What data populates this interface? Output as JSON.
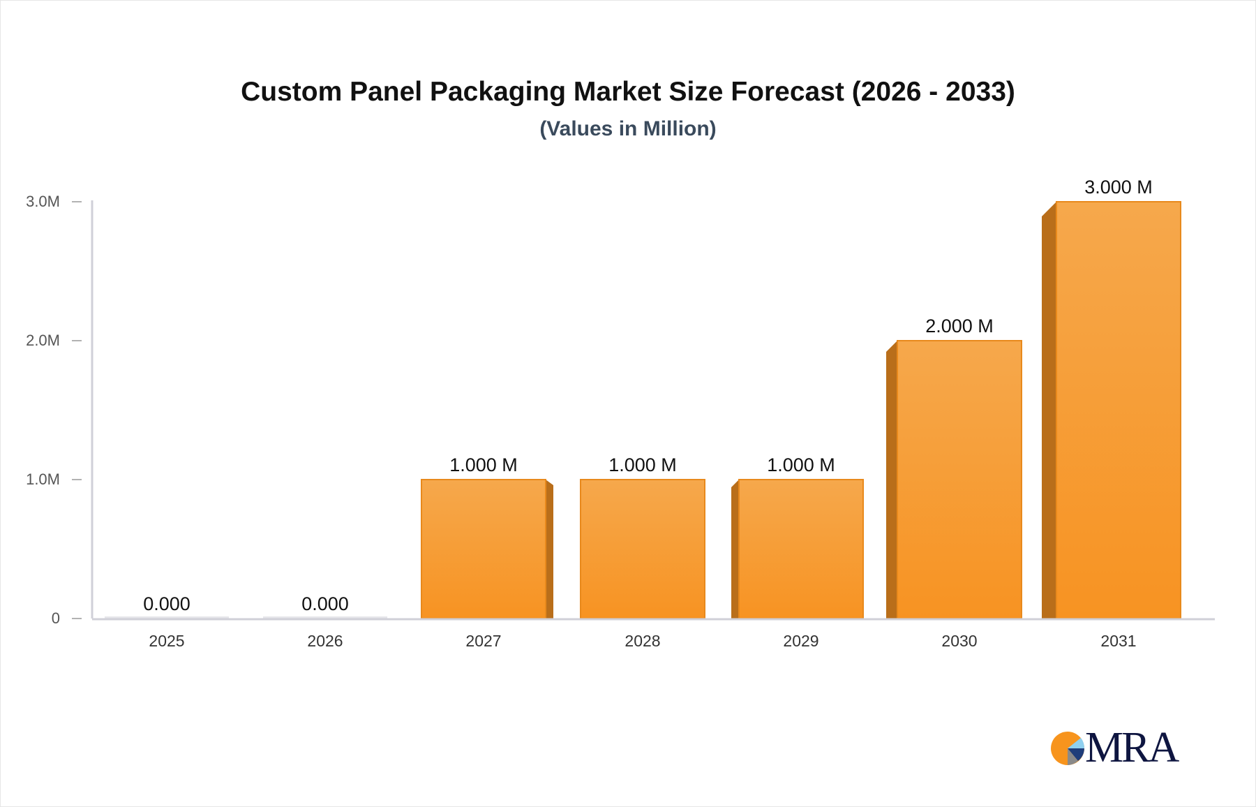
{
  "chart_data": {
    "type": "bar",
    "title": "Custom Panel Packaging Market Size Forecast (2026 - 2033)",
    "subtitle": "(Values in Million)",
    "categories": [
      "2025",
      "2026",
      "2027",
      "2028",
      "2029",
      "2030",
      "2031"
    ],
    "values": [
      0,
      0,
      1,
      1,
      1,
      2,
      3
    ],
    "data_labels": [
      "0.000",
      "0.000",
      "1.000 M",
      "1.000 M",
      "1.000 M",
      "2.000 M",
      "3.000 M"
    ],
    "yticks": [
      {
        "value": 0,
        "label": "0"
      },
      {
        "value": 1,
        "label": "1.0M"
      },
      {
        "value": 2,
        "label": "2.0M"
      },
      {
        "value": 3,
        "label": "3.0M"
      }
    ],
    "ylim": [
      0,
      3
    ],
    "xlabel": "",
    "ylabel": "",
    "grid": false,
    "colors": {
      "bar": "#f7a03e",
      "bar_side": "#b96e1a",
      "axis": "#d0d0d8"
    }
  },
  "logo": {
    "text": "MRA"
  }
}
